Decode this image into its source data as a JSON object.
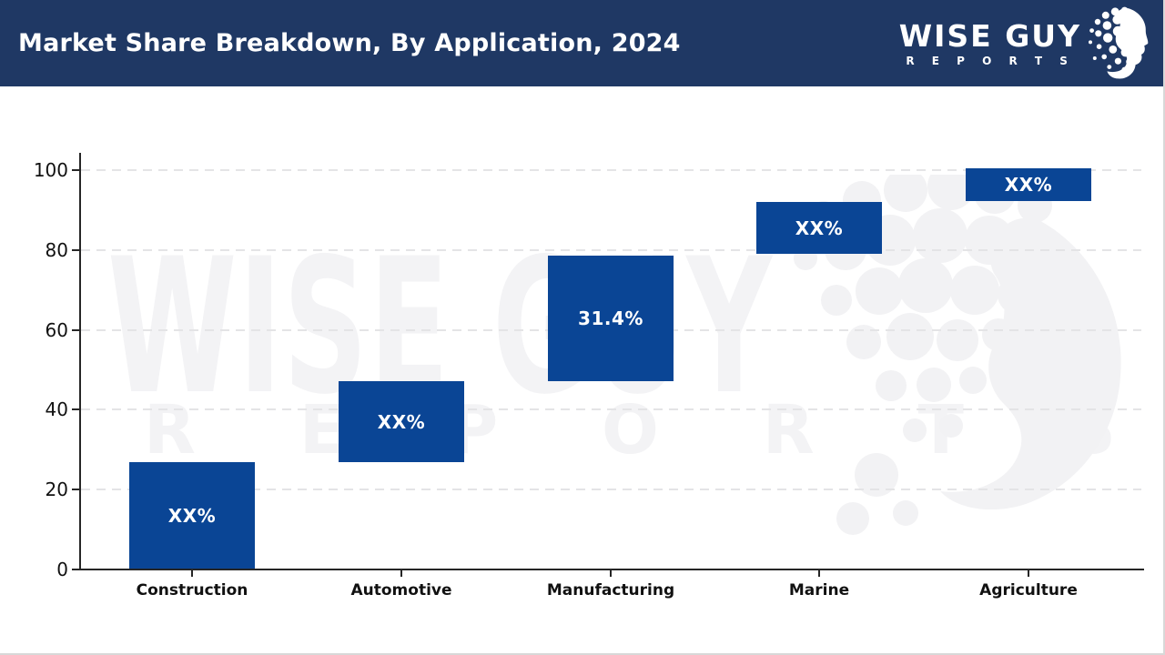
{
  "header": {
    "title": "Market Share Breakdown, By Application, 2024",
    "bg_color": "#1f3864",
    "logo": {
      "line1": "WISE GUY",
      "line2": "R E P O R T S"
    }
  },
  "watermark": {
    "line1": "WISE GUY",
    "line2": "R E P O R T S"
  },
  "chart_data": {
    "type": "bar",
    "subtype": "floating-waterfall",
    "title": "Market Share Breakdown, By Application, 2024",
    "categories": [
      "Construction",
      "Automotive",
      "Manufacturing",
      "Marine",
      "Agriculture"
    ],
    "segments": [
      {
        "category": "Construction",
        "from": 0,
        "to": 26.8,
        "value": 26.8,
        "label": "XX%"
      },
      {
        "category": "Automotive",
        "from": 26.8,
        "to": 47.1,
        "value": 20.3,
        "label": "XX%"
      },
      {
        "category": "Manufacturing",
        "from": 47.1,
        "to": 78.5,
        "value": 31.4,
        "label": "31.4%"
      },
      {
        "category": "Marine",
        "from": 79.0,
        "to": 92.0,
        "value": 13.0,
        "label": "XX%"
      },
      {
        "category": "Agriculture",
        "from": 92.3,
        "to": 100.5,
        "value": 8.2,
        "label": "XX%"
      }
    ],
    "yticks": [
      0,
      20,
      40,
      60,
      80,
      100
    ],
    "ylim": [
      0,
      104.3
    ],
    "xlabel": "",
    "ylabel": "",
    "legend": "none",
    "grid": "horizontal-dashed",
    "bar_color": "#0a4595",
    "bar_label_color": "#ffffff",
    "axis_color": "#262626",
    "gridline_color": "#e4e4e6"
  }
}
